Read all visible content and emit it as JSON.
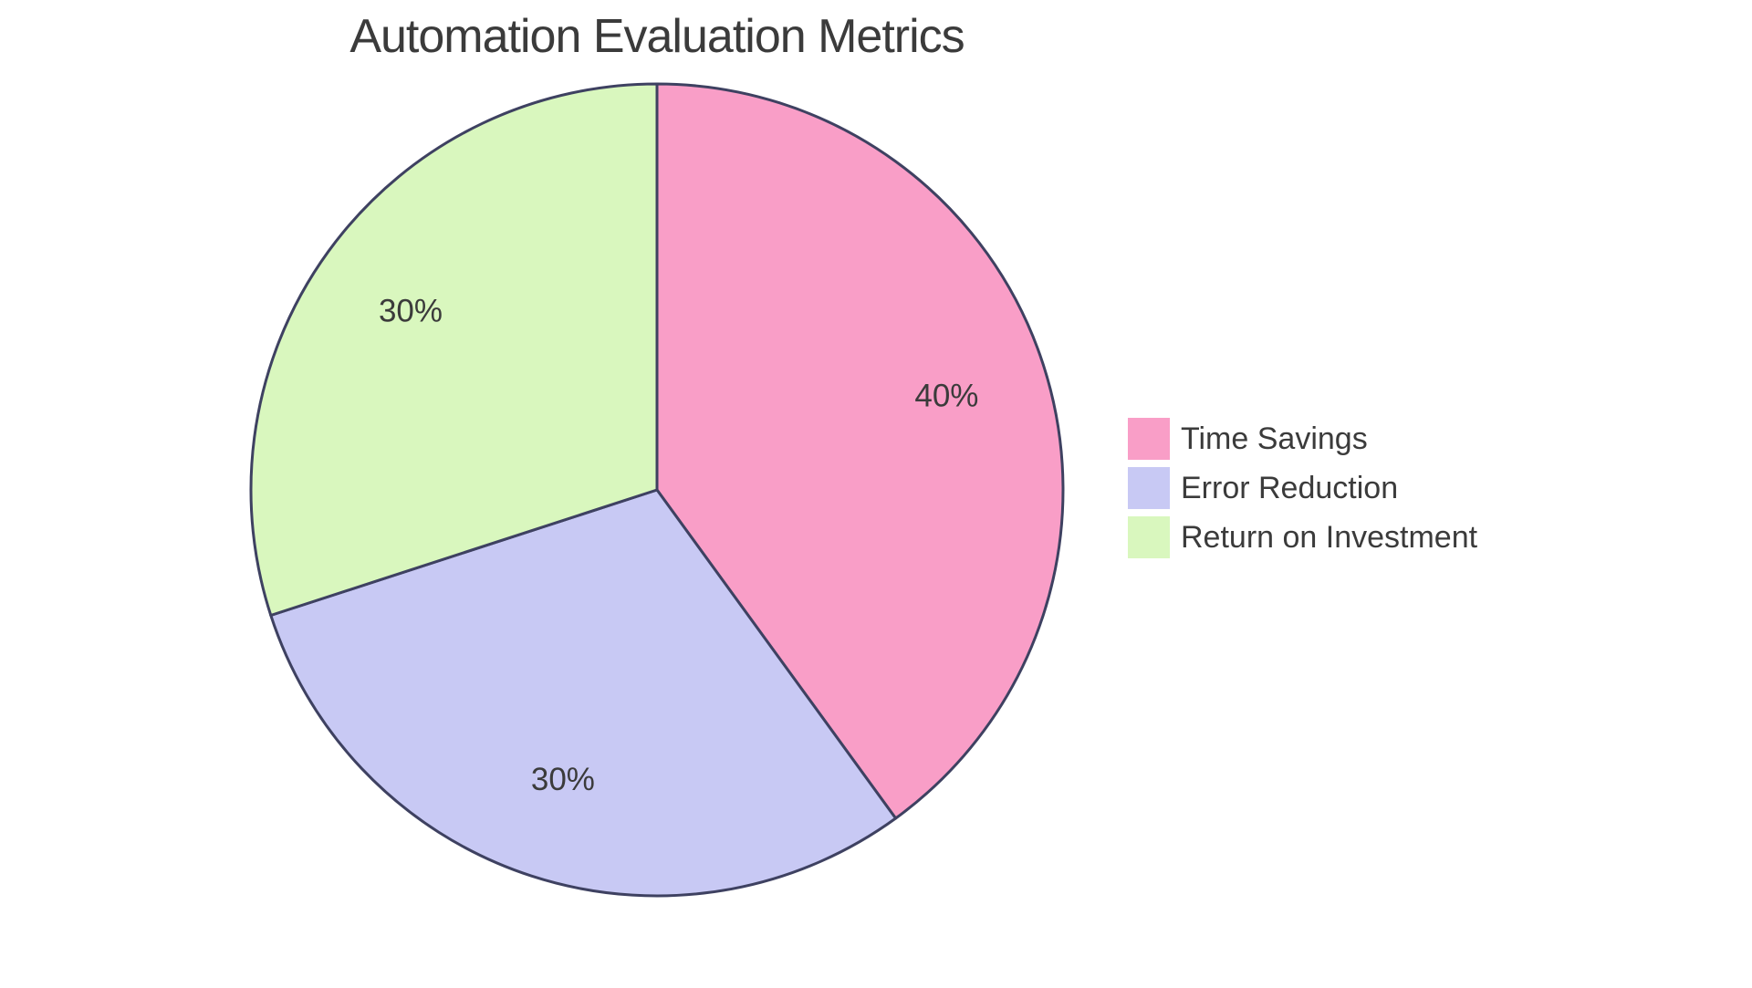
{
  "page": {
    "background_color": "#FFFFFF"
  },
  "chart_data": {
    "type": "pie",
    "title": "Automation Evaluation Metrics",
    "labels": [
      "Time Savings",
      "Error Reduction",
      "Return on Investment"
    ],
    "values": [
      40,
      30,
      30
    ],
    "slice_labels": [
      "40%",
      "30%",
      "30%"
    ],
    "colors": [
      "#F99EC7",
      "#C8C9F4",
      "#D9F7BE"
    ],
    "stroke_color": "#3E4161",
    "stroke_width": 3,
    "text_color": "#3B3B3B",
    "start_angle": "top",
    "direction": "clockwise",
    "legend_position": "right",
    "label_radius_fraction": 0.75,
    "grid": false
  }
}
